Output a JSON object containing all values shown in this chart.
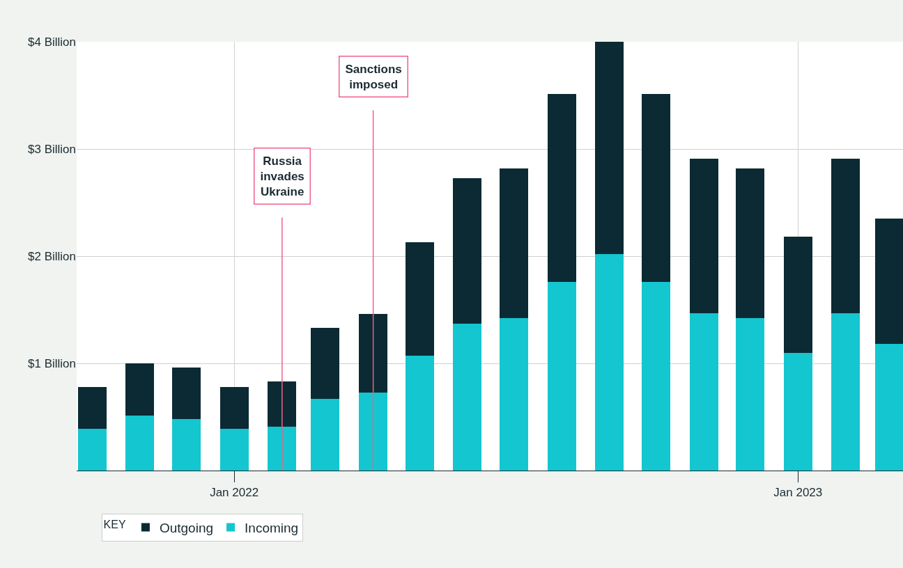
{
  "chart_data": {
    "type": "bar",
    "stacked": true,
    "x": [
      "2021-10",
      "2021-11",
      "2021-12",
      "2022-01",
      "2022-02",
      "2022-03",
      "2022-04",
      "2022-05",
      "2022-06",
      "2022-07",
      "2022-08",
      "2022-09",
      "2022-10",
      "2022-11",
      "2022-12",
      "2023-01",
      "2023-02",
      "2023-03"
    ],
    "series": [
      {
        "name": "Incoming",
        "color": "#14c6cf",
        "values": [
          0.39,
          0.51,
          0.48,
          0.39,
          0.41,
          0.67,
          0.73,
          1.07,
          1.37,
          1.42,
          1.76,
          2.02,
          1.76,
          1.47,
          1.42,
          1.1,
          1.47,
          1.18
        ]
      },
      {
        "name": "Outgoing",
        "color": "#0b2a33",
        "values": [
          0.39,
          0.49,
          0.48,
          0.39,
          0.42,
          0.66,
          0.73,
          1.06,
          1.36,
          1.4,
          1.75,
          1.98,
          1.75,
          1.44,
          1.4,
          1.08,
          1.44,
          1.17
        ]
      }
    ],
    "ylim": [
      0,
      4
    ],
    "yticks": [
      {
        "value": 0,
        "label": null
      },
      {
        "value": 1,
        "label": "$1 Billion"
      },
      {
        "value": 2,
        "label": "$2 Billion"
      },
      {
        "value": 3,
        "label": "$3 Billion"
      },
      {
        "value": 4,
        "label": "$4 Billion"
      }
    ],
    "xlim": [
      "2021-09-21",
      "2023-03-10"
    ],
    "xticks": [
      {
        "value": "2022-01",
        "label": "Jan 2022"
      },
      {
        "value": "2023-01",
        "label": "Jan 2023"
      }
    ],
    "ref_lines": [
      {
        "axis": "x",
        "value": "2022-02",
        "label": "Russia\ninvades\nUkraine",
        "color": "#f0608a"
      },
      {
        "axis": "x",
        "value": "2022-04",
        "label": "Sanctions\nimposed",
        "color": "#f0608a"
      }
    ],
    "legend_title": "KEY",
    "legend": "bottom left",
    "grid": true
  }
}
